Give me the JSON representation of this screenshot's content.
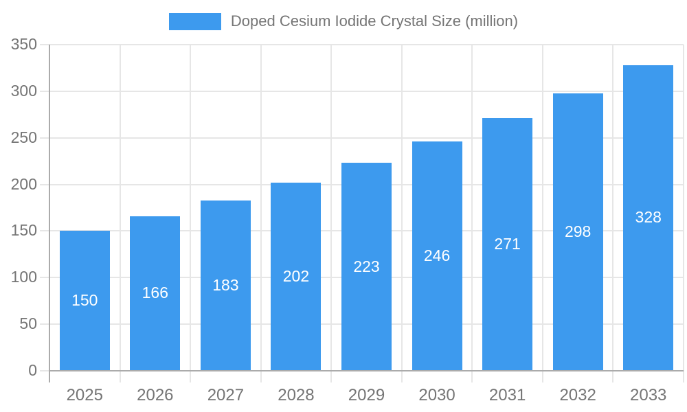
{
  "chart_data": {
    "type": "bar",
    "title": "Doped Cesium Iodide Crystal Size (million)",
    "categories": [
      "2025",
      "2026",
      "2027",
      "2028",
      "2029",
      "2030",
      "2031",
      "2032",
      "2033"
    ],
    "values": [
      150,
      166,
      183,
      202,
      223,
      246,
      271,
      298,
      328
    ],
    "series": [
      {
        "name": "Doped Cesium Iodide Crystal Size (million)",
        "values": [
          150,
          166,
          183,
          202,
          223,
          246,
          271,
          298,
          328
        ]
      }
    ],
    "xlabel": "",
    "ylabel": "",
    "ylim": [
      0,
      350
    ],
    "yticks": [
      0,
      50,
      100,
      150,
      200,
      250,
      300,
      350
    ],
    "legend_position": "top",
    "grid": "on",
    "bar_labels_shown": true,
    "colors": {
      "bar": "#3D9AEE",
      "bar_value_label": "#FFFFFF",
      "axis_text": "#757575",
      "gridline": "#E6E6E6",
      "axis_line": "#ABABAB",
      "background": "#FFFFFF"
    }
  }
}
